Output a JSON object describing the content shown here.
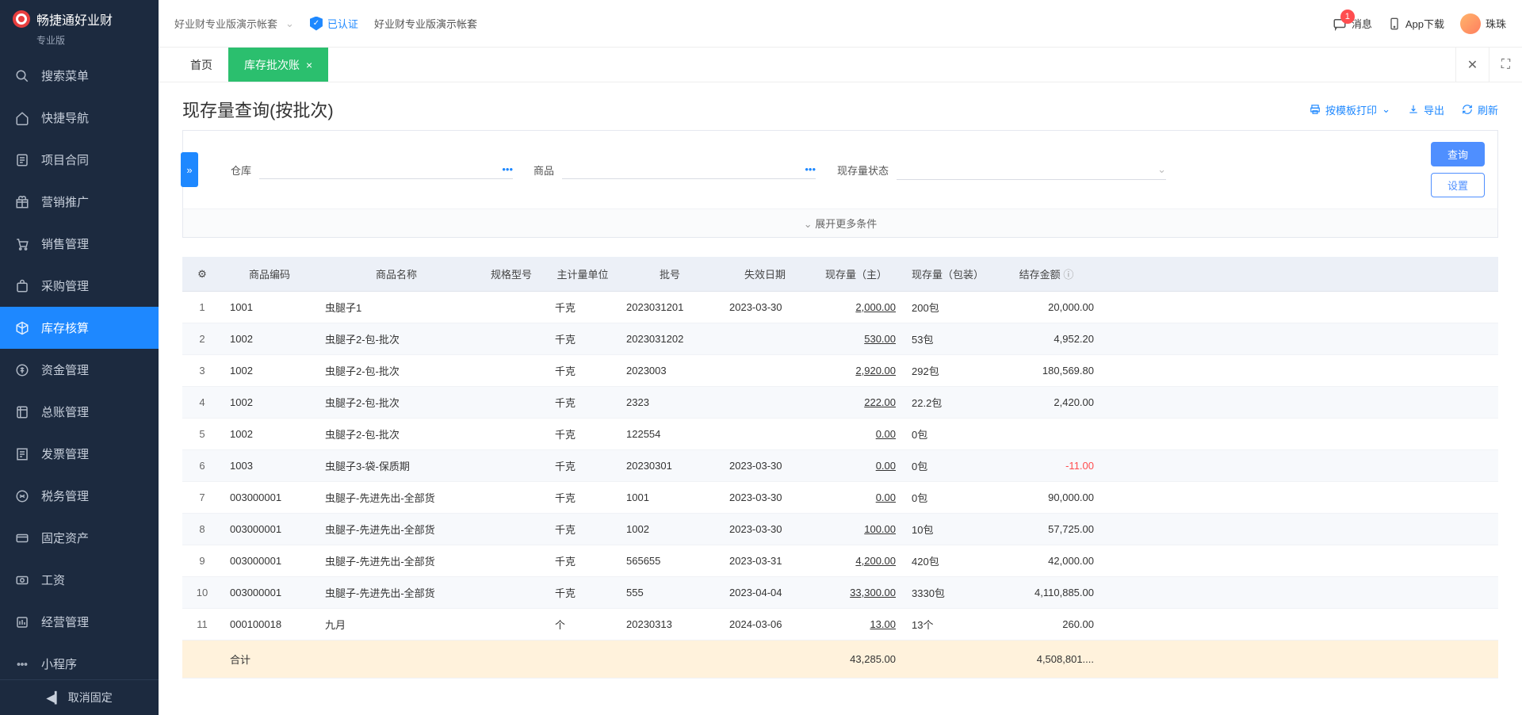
{
  "brand": {
    "name": "畅捷通好业财",
    "sub": "专业版"
  },
  "sidebar": {
    "items": [
      {
        "label": "搜索菜单",
        "icon": "search"
      },
      {
        "label": "快捷导航",
        "icon": "home"
      },
      {
        "label": "项目合同",
        "icon": "contract"
      },
      {
        "label": "营销推广",
        "icon": "gift"
      },
      {
        "label": "销售管理",
        "icon": "cart"
      },
      {
        "label": "采购管理",
        "icon": "bag"
      },
      {
        "label": "库存核算",
        "icon": "box"
      },
      {
        "label": "资金管理",
        "icon": "coin"
      },
      {
        "label": "总账管理",
        "icon": "ledger"
      },
      {
        "label": "发票管理",
        "icon": "invoice"
      },
      {
        "label": "税务管理",
        "icon": "tax"
      },
      {
        "label": "固定资产",
        "icon": "asset"
      },
      {
        "label": "工资",
        "icon": "wage"
      },
      {
        "label": "经营管理",
        "icon": "biz"
      },
      {
        "label": "小程序",
        "icon": "more"
      }
    ],
    "activeIndex": 6,
    "pin": "取消固定"
  },
  "topbar": {
    "account": "好业财专业版演示帐套",
    "verified": "已认证",
    "account2": "好业财专业版演示帐套",
    "message": "消息",
    "messageCount": "1",
    "download": "App下载",
    "user": "珠珠"
  },
  "tabs": {
    "home": "首页",
    "active": "库存批次账"
  },
  "page": {
    "title": "现存量查询(按批次)",
    "print": "按模板打印",
    "export": "导出",
    "refresh": "刷新"
  },
  "filter": {
    "warehouse": "仓库",
    "product": "商品",
    "status": "现存量状态",
    "query": "查询",
    "settings": "设置",
    "expand": "展开更多条件"
  },
  "table": {
    "headers": {
      "code": "商品编码",
      "name": "商品名称",
      "spec": "规格型号",
      "unit": "主计量单位",
      "batch": "批号",
      "expire": "失效日期",
      "qty": "现存量（主）",
      "pkg": "现存量（包装）",
      "amt": "结存金额"
    },
    "rows": [
      {
        "idx": "1",
        "code": "1001",
        "name": "虫腿子1",
        "unit": "千克",
        "batch": "2023031201",
        "expire": "2023-03-30",
        "qty": "2,000.00",
        "pkg": "200包",
        "amt": "20,000.00"
      },
      {
        "idx": "2",
        "code": "1002",
        "name": "虫腿子2-包-批次",
        "unit": "千克",
        "batch": "2023031202",
        "expire": "",
        "qty": "530.00",
        "pkg": "53包",
        "amt": "4,952.20"
      },
      {
        "idx": "3",
        "code": "1002",
        "name": "虫腿子2-包-批次",
        "unit": "千克",
        "batch": "2023003",
        "expire": "",
        "qty": "2,920.00",
        "pkg": "292包",
        "amt": "180,569.80"
      },
      {
        "idx": "4",
        "code": "1002",
        "name": "虫腿子2-包-批次",
        "unit": "千克",
        "batch": "2323",
        "expire": "",
        "qty": "222.00",
        "pkg": "22.2包",
        "amt": "2,420.00"
      },
      {
        "idx": "5",
        "code": "1002",
        "name": "虫腿子2-包-批次",
        "unit": "千克",
        "batch": "122554",
        "expire": "",
        "qty": "0.00",
        "pkg": "0包",
        "amt": ""
      },
      {
        "idx": "6",
        "code": "1003",
        "name": "虫腿子3-袋-保质期",
        "unit": "千克",
        "batch": "20230301",
        "expire": "2023-03-30",
        "qty": "0.00",
        "pkg": "0包",
        "amt": "-11.00",
        "neg": true
      },
      {
        "idx": "7",
        "code": "003000001",
        "name": "虫腿子-先进先出-全部货",
        "unit": "千克",
        "batch": "1001",
        "expire": "2023-03-30",
        "qty": "0.00",
        "pkg": "0包",
        "amt": "90,000.00"
      },
      {
        "idx": "8",
        "code": "003000001",
        "name": "虫腿子-先进先出-全部货",
        "unit": "千克",
        "batch": "1002",
        "expire": "2023-03-30",
        "qty": "100.00",
        "pkg": "10包",
        "amt": "57,725.00"
      },
      {
        "idx": "9",
        "code": "003000001",
        "name": "虫腿子-先进先出-全部货",
        "unit": "千克",
        "batch": "565655",
        "expire": "2023-03-31",
        "qty": "4,200.00",
        "pkg": "420包",
        "amt": "42,000.00"
      },
      {
        "idx": "10",
        "code": "003000001",
        "name": "虫腿子-先进先出-全部货",
        "unit": "千克",
        "batch": "555",
        "expire": "2023-04-04",
        "qty": "33,300.00",
        "pkg": "3330包",
        "amt": "4,110,885.00"
      },
      {
        "idx": "11",
        "code": "000100018",
        "name": "九月",
        "unit": "个",
        "batch": "20230313",
        "expire": "2024-03-06",
        "qty": "13.00",
        "pkg": "13个",
        "amt": "260.00"
      }
    ],
    "total": {
      "label": "合计",
      "qty": "43,285.00",
      "amt": "4,508,801...."
    }
  }
}
